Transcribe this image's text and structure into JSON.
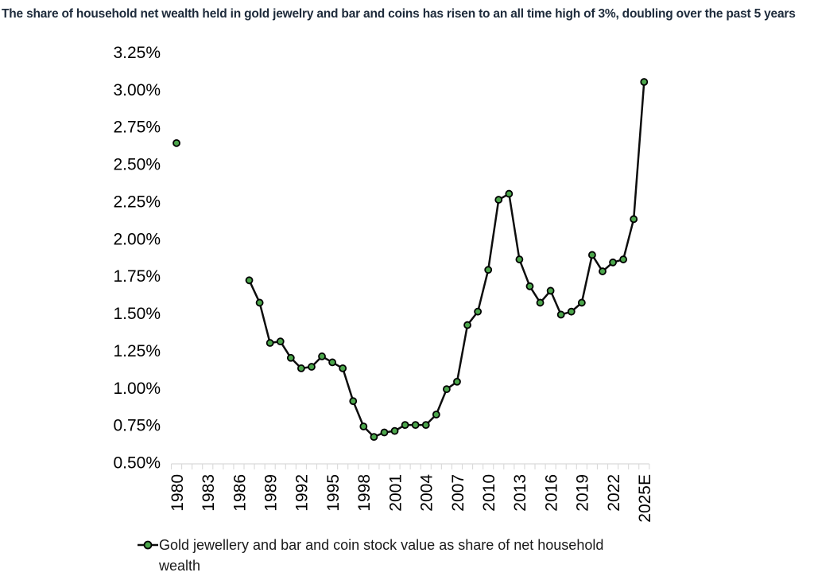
{
  "header": {
    "title": "The share of household net wealth held in gold jewelry and bar and coins has risen to an all time high of 3%, doubling over the past 5 years"
  },
  "colors": {
    "title_text": "#1e2b3b",
    "axis_text": "#000000",
    "axis_line": "#d9d9d9",
    "series_line": "#0d0d0d",
    "marker_fill": "#4ca64c",
    "marker_stroke": "#000000"
  },
  "chart_data": {
    "type": "line",
    "title": "The share of household net wealth held in gold jewelry and bar and coins has risen to an all time high of 3%, doubling over the past 5 years",
    "xlabel": "",
    "ylabel": "",
    "grid": false,
    "legend_position": "bottom",
    "legend": "Gold jewellery and bar and coin stock value as share of net household\nwealth",
    "series_name": "Gold jewellery and bar and coin stock value as share of net household wealth",
    "ylim": [
      0.5,
      3.25
    ],
    "y_ticks": [
      {
        "value": 3.25,
        "label": "3.25%"
      },
      {
        "value": 3.0,
        "label": "3.00%"
      },
      {
        "value": 2.75,
        "label": "2.75%"
      },
      {
        "value": 2.5,
        "label": "2.50%"
      },
      {
        "value": 2.25,
        "label": "2.25%"
      },
      {
        "value": 2.0,
        "label": "2.00%"
      },
      {
        "value": 1.75,
        "label": "1.75%"
      },
      {
        "value": 1.5,
        "label": "1.50%"
      },
      {
        "value": 1.25,
        "label": "1.25%"
      },
      {
        "value": 1.0,
        "label": "1.00%"
      },
      {
        "value": 0.75,
        "label": "0.75%"
      },
      {
        "value": 0.5,
        "label": "0.50%"
      }
    ],
    "x_range": [
      1980,
      2025
    ],
    "x_ticks": [
      {
        "year": 1980,
        "label": "1980"
      },
      {
        "year": 1983,
        "label": "1983"
      },
      {
        "year": 1986,
        "label": "1986"
      },
      {
        "year": 1989,
        "label": "1989"
      },
      {
        "year": 1992,
        "label": "1992"
      },
      {
        "year": 1995,
        "label": "1995"
      },
      {
        "year": 1998,
        "label": "1998"
      },
      {
        "year": 2001,
        "label": "2001"
      },
      {
        "year": 2004,
        "label": "2004"
      },
      {
        "year": 2007,
        "label": "2007"
      },
      {
        "year": 2010,
        "label": "2010"
      },
      {
        "year": 2013,
        "label": "2013"
      },
      {
        "year": 2016,
        "label": "2016"
      },
      {
        "year": 2019,
        "label": "2019"
      },
      {
        "year": 2022,
        "label": "2022"
      },
      {
        "year": 2025,
        "label": "2025E"
      }
    ],
    "points": [
      [
        1980,
        2.64
      ],
      [
        1987,
        1.72
      ],
      [
        1988,
        1.57
      ],
      [
        1989,
        1.3
      ],
      [
        1990,
        1.31
      ],
      [
        1991,
        1.2
      ],
      [
        1992,
        1.13
      ],
      [
        1993,
        1.14
      ],
      [
        1994,
        1.21
      ],
      [
        1995,
        1.17
      ],
      [
        1996,
        1.13
      ],
      [
        1997,
        0.91
      ],
      [
        1998,
        0.74
      ],
      [
        1999,
        0.67
      ],
      [
        2000,
        0.7
      ],
      [
        2001,
        0.71
      ],
      [
        2002,
        0.75
      ],
      [
        2003,
        0.75
      ],
      [
        2004,
        0.75
      ],
      [
        2005,
        0.82
      ],
      [
        2006,
        0.99
      ],
      [
        2007,
        1.04
      ],
      [
        2008,
        1.42
      ],
      [
        2009,
        1.51
      ],
      [
        2010,
        1.79
      ],
      [
        2011,
        2.26
      ],
      [
        2012,
        2.3
      ],
      [
        2013,
        1.86
      ],
      [
        2014,
        1.68
      ],
      [
        2015,
        1.57
      ],
      [
        2016,
        1.65
      ],
      [
        2017,
        1.49
      ],
      [
        2018,
        1.51
      ],
      [
        2019,
        1.57
      ],
      [
        2020,
        1.89
      ],
      [
        2021,
        1.78
      ],
      [
        2022,
        1.84
      ],
      [
        2023,
        1.86
      ],
      [
        2024,
        2.13
      ],
      [
        2025,
        3.05
      ]
    ]
  }
}
